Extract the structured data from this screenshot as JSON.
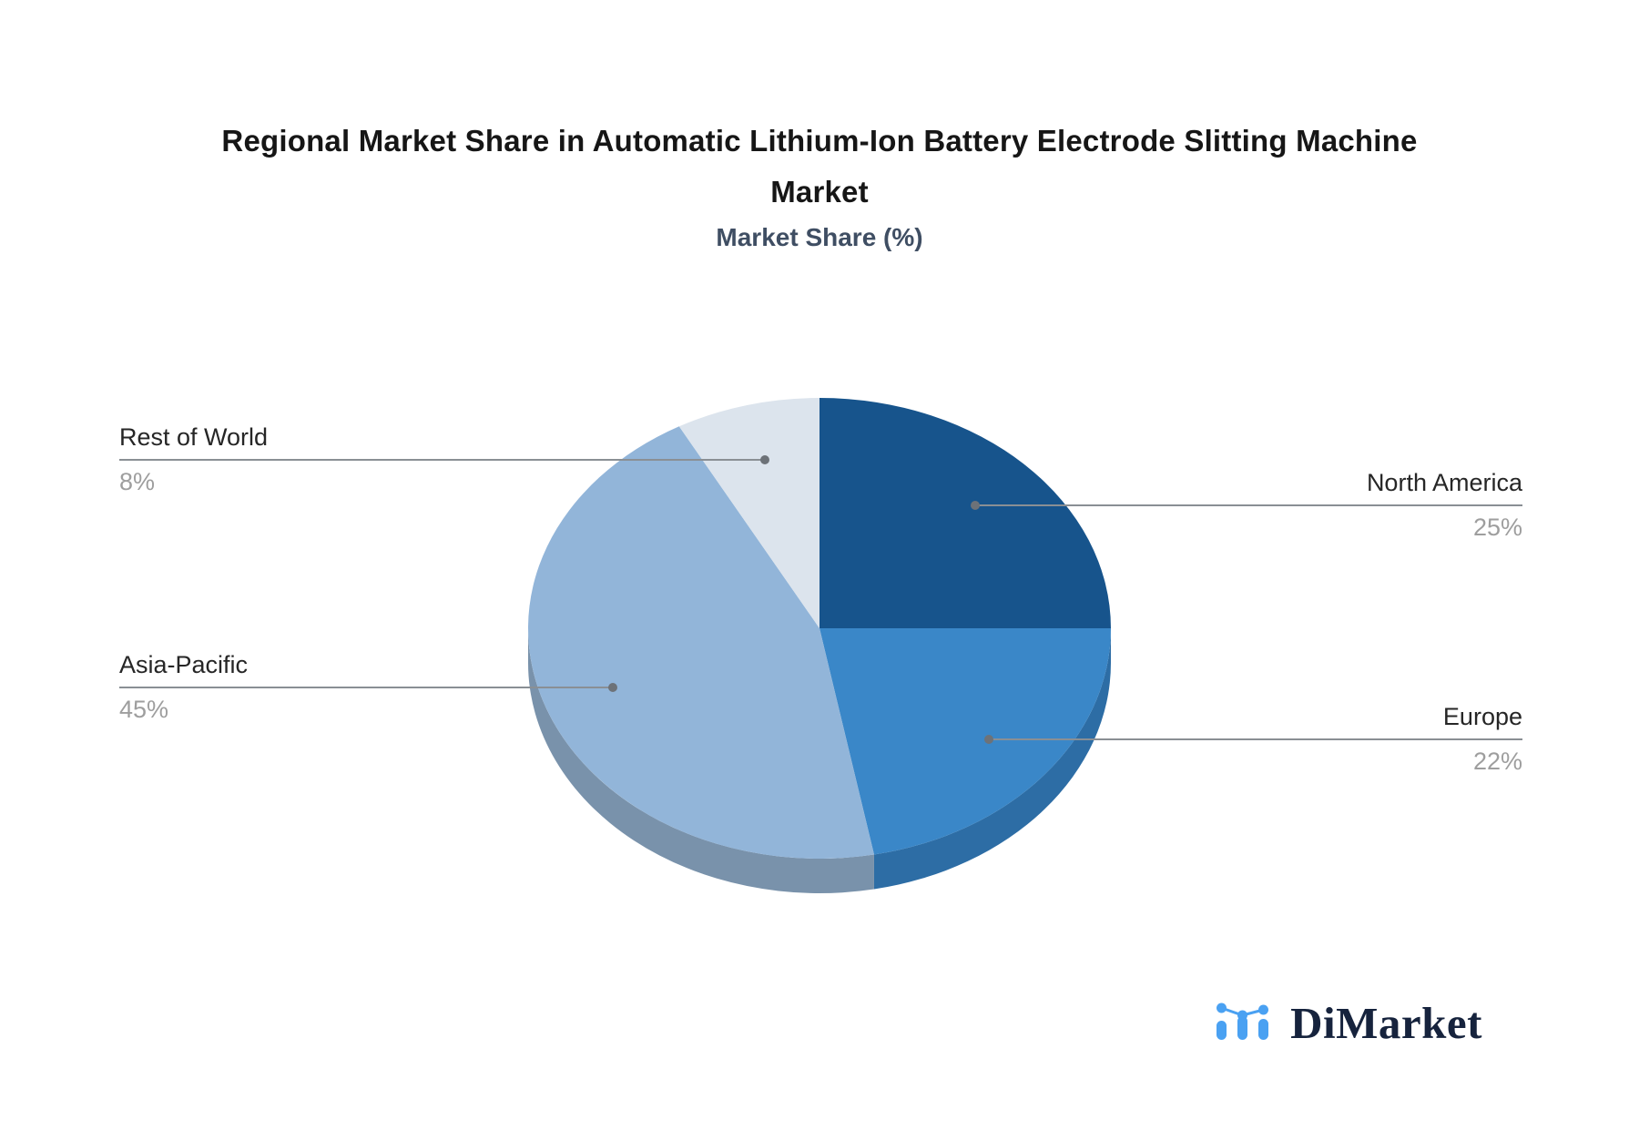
{
  "header": {
    "title_line1": "Regional Market Share in Automatic Lithium-Ion Battery Electrode Slitting Machine",
    "title_line2": "Market",
    "subtitle": "Market Share (%)"
  },
  "chart_data": {
    "type": "pie",
    "title": "Regional Market Share in Automatic Lithium-Ion Battery Electrode Slitting Machine Market",
    "subtitle": "Market Share (%)",
    "unit": "%",
    "style": "3d-pie",
    "legend": "none",
    "label_style": "outside-callout",
    "rotation_start": "12-oclock-clockwise",
    "slices": [
      {
        "name": "North America",
        "value": 25,
        "pct_label": "25%",
        "color": "#17548C",
        "depth_color": "#12436F",
        "label_side": "right"
      },
      {
        "name": "Europe",
        "value": 22,
        "pct_label": "22%",
        "color": "#3A87C8",
        "depth_color": "#2D6DA5",
        "label_side": "right"
      },
      {
        "name": "Asia-Pacific",
        "value": 45,
        "pct_label": "45%",
        "color": "#92B5D9",
        "depth_color": "#7992AB",
        "label_side": "left"
      },
      {
        "name": "Rest of World",
        "value": 8,
        "pct_label": "8%",
        "color": "#DCE4ED",
        "depth_color": "#B9C4D3",
        "label_side": "left"
      }
    ],
    "colors": {
      "label_text": "#262626",
      "percent_text": "#9E9E9E",
      "leader_line": "#8A8F94",
      "leader_dot": "#6D7278",
      "subtitle_text": "#3F4E63"
    }
  },
  "brand": {
    "name": "DiMarket",
    "text_color": "#16233D",
    "icon_color": "#4AA1F2"
  }
}
